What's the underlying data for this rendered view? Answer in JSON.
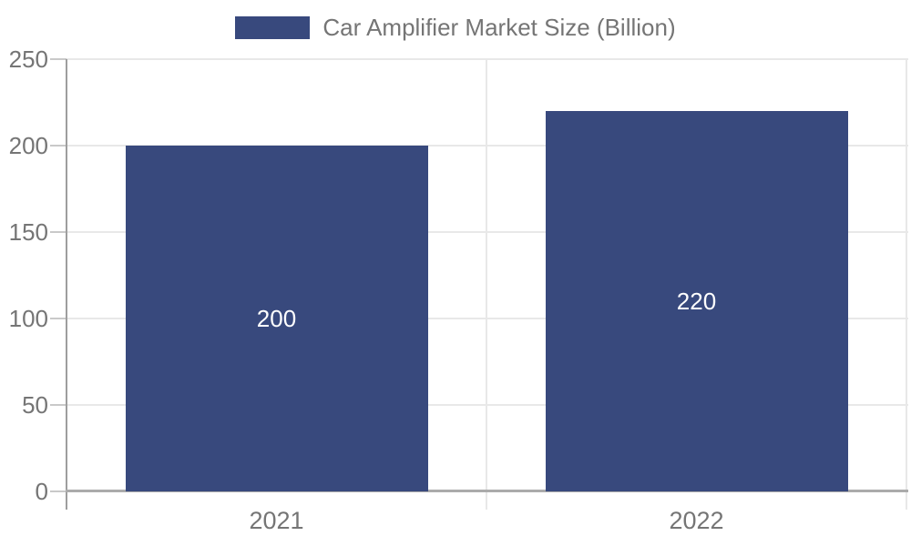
{
  "chart_data": {
    "type": "bar",
    "title": "Car Amplifier Market Size (Billion)",
    "categories": [
      "2021",
      "2022"
    ],
    "values": [
      200,
      220
    ],
    "value_labels": [
      "200",
      "220"
    ],
    "xlabel": "",
    "ylabel": "",
    "ylim": [
      0,
      250
    ],
    "yticks": [
      "0",
      "50",
      "100",
      "150",
      "200",
      "250"
    ],
    "grid": true,
    "legend": {
      "label": "Car Amplifier Market Size (Billion)",
      "position": "top-center"
    }
  },
  "colors": {
    "bar": "#38497D",
    "axis_text": "#757575",
    "value_label_text": "#ffffff",
    "gridline": "#e8e8e8",
    "axis_line": "#9e9e9e",
    "baseline": "#ababab",
    "tick": "#c9c9c9",
    "background": "#ffffff"
  }
}
